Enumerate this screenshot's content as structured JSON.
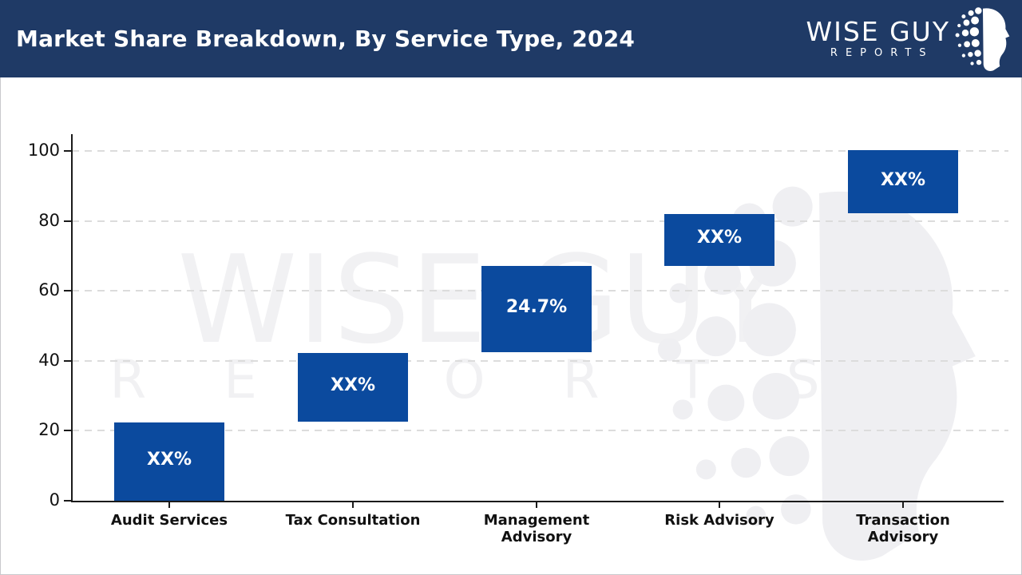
{
  "header": {
    "title": "Market Share Breakdown, By Service Type, 2024",
    "logo": {
      "line1": "WISE GUY",
      "line2": "REPORTS"
    }
  },
  "watermark": {
    "line1": "WISE GUY",
    "line2": "R E P O R T S"
  },
  "colors": {
    "header_bg": "#1f3a66",
    "bar": "#0b4a9e",
    "grid": "#dcdcdc",
    "axis": "#1a1a1a",
    "bar_label": "#ffffff",
    "watermark": "#f1f1f3",
    "edge_border": "#c9c9cc"
  },
  "chart_data": {
    "type": "bar",
    "subtype": "waterfall",
    "title": "Market Share Breakdown, By Service Type, 2024",
    "categories": [
      "Audit Services",
      "Tax Consultation",
      "Management Advisory",
      "Risk Advisory",
      "Transaction Advisory"
    ],
    "category_lines": [
      [
        "Audit Services"
      ],
      [
        "Tax Consultation"
      ],
      [
        "Management",
        "Advisory"
      ],
      [
        "Risk Advisory"
      ],
      [
        "Transaction",
        "Advisory"
      ]
    ],
    "segments": [
      {
        "category": "Audit Services",
        "start": 0,
        "end": 22.4,
        "label": "XX%"
      },
      {
        "category": "Tax Consultation",
        "start": 22.6,
        "end": 42.2,
        "label": "XX%"
      },
      {
        "category": "Management Advisory",
        "start": 42.5,
        "end": 67.2,
        "label": "24.7%"
      },
      {
        "category": "Risk Advisory",
        "start": 67.1,
        "end": 82.0,
        "label": "XX%"
      },
      {
        "category": "Transaction Advisory",
        "start": 82.2,
        "end": 100.2,
        "label": "XX%"
      }
    ],
    "xlabel": "",
    "ylabel": "",
    "ylim": [
      0,
      100
    ],
    "yticks": [
      0,
      20,
      40,
      60,
      80,
      100
    ],
    "grid": "horizontal-dashed",
    "legend": "none"
  }
}
